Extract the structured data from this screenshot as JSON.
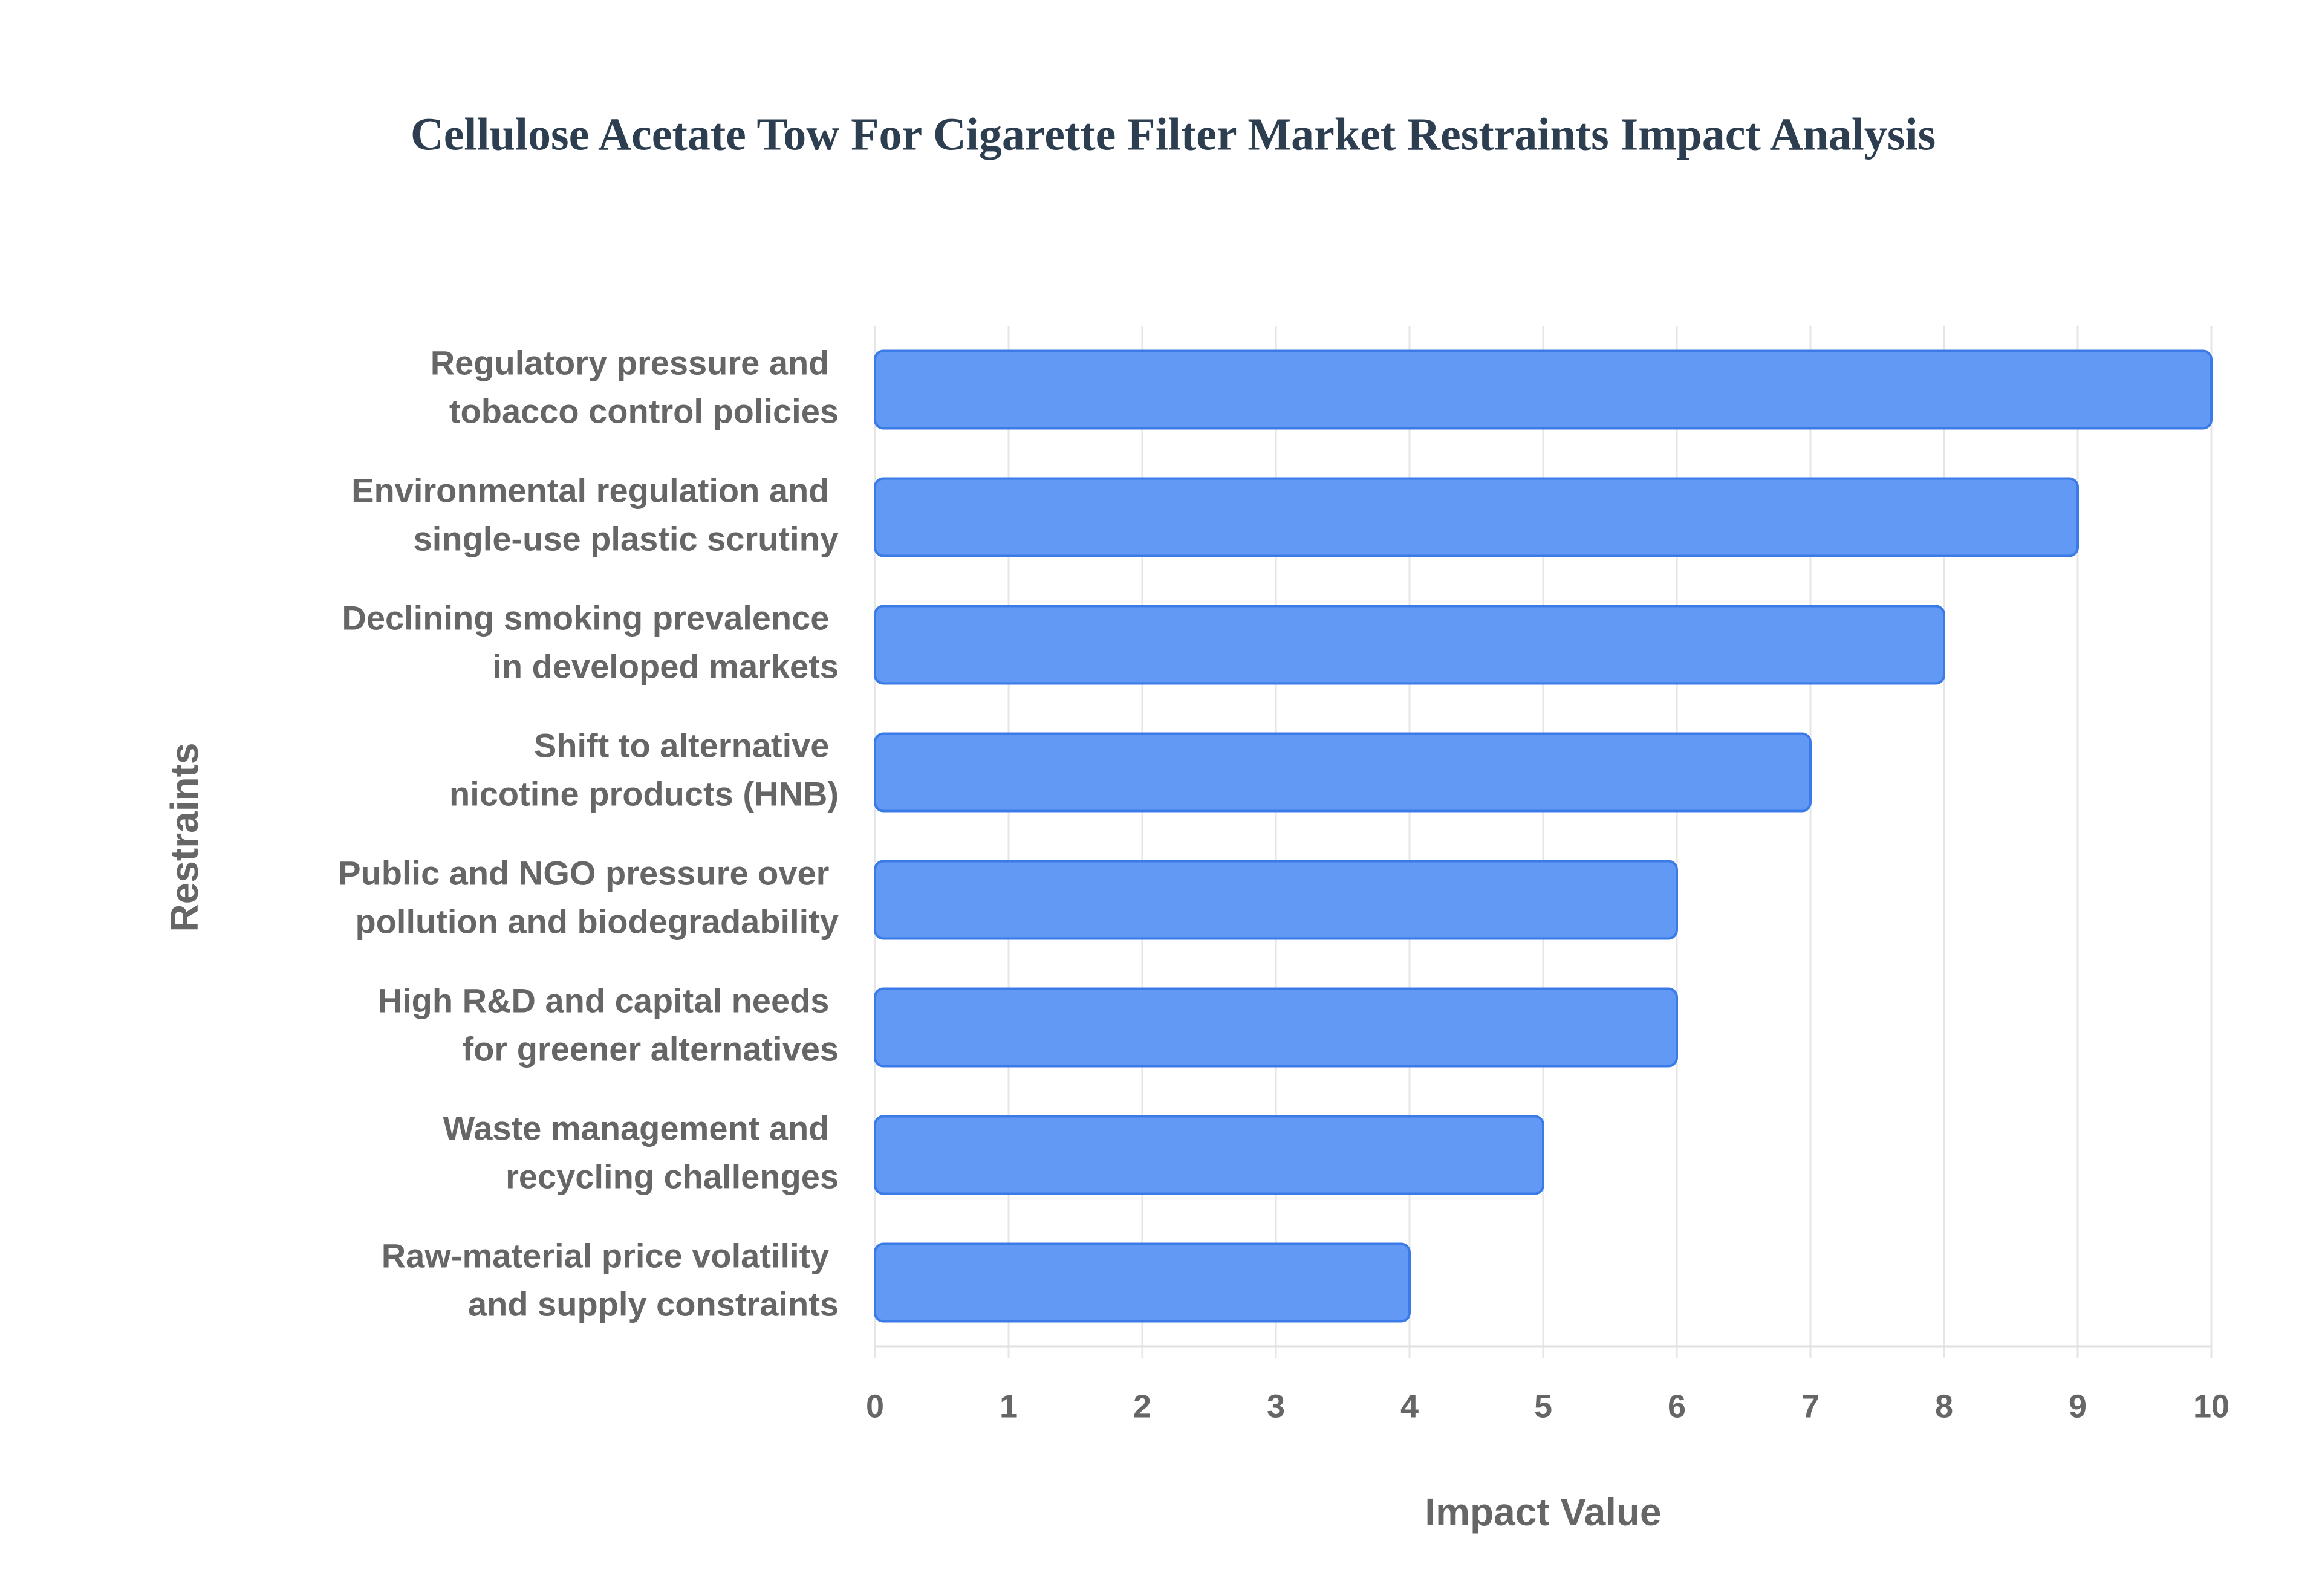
{
  "chart_data": {
    "type": "bar",
    "orientation": "horizontal",
    "title": "Cellulose Acetate Tow For Cigarette Filter Market Restraints Impact Analysis",
    "x_label": "Impact Value",
    "y_label": "Restraints",
    "categories": [
      "Regulatory pressure and tobacco control policies",
      "Environmental regulation and single-use plastic scrutiny",
      "Declining smoking prevalence in developed markets",
      "Shift to alternative nicotine products (HNB)",
      "Public and NGO pressure over pollution and biodegradability",
      "High R&D and capital needs for greener alternatives",
      "Waste management and recycling challenges",
      "Raw-material price volatility and supply constraints"
    ],
    "values": [
      10,
      9,
      8,
      7,
      6,
      6,
      5,
      4
    ],
    "color": "#6199f5",
    "edge_color": "#3b7be8",
    "xlim": [
      0,
      10
    ],
    "xticks": [
      0,
      1,
      2,
      3,
      4,
      5,
      6,
      7,
      8,
      9,
      10
    ],
    "grid": true
  }
}
